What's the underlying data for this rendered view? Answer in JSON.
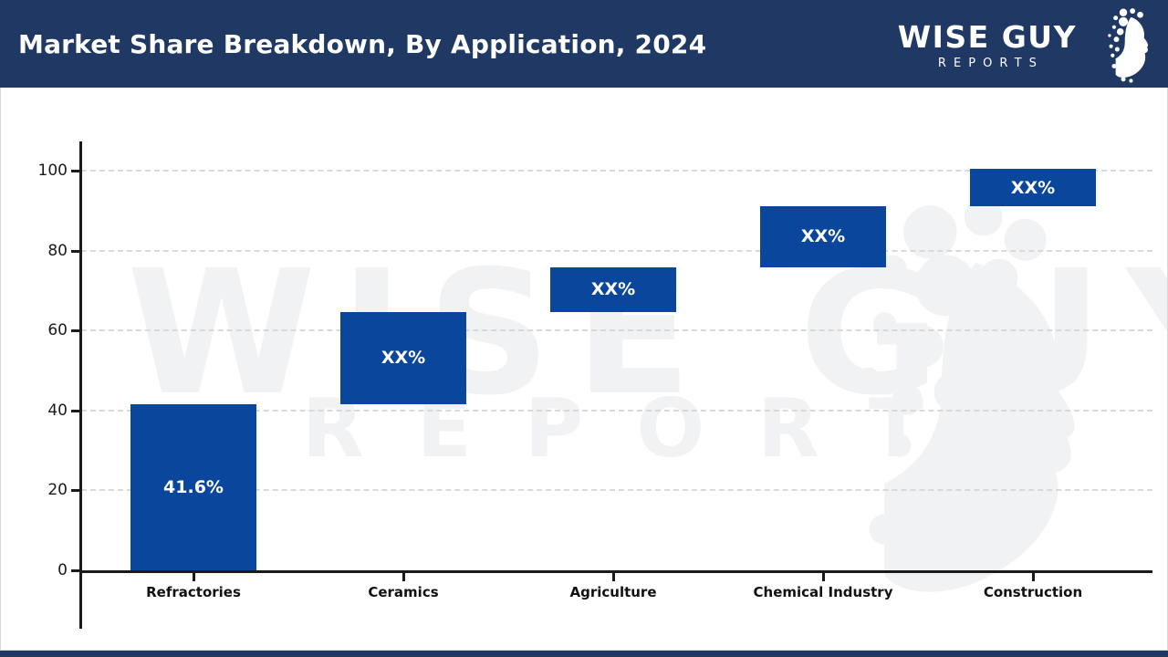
{
  "header": {
    "title": "Market Share Breakdown, By Application, 2024",
    "logo": {
      "line1": "WISE GUY",
      "line2": "REPORTS"
    }
  },
  "watermark": {
    "line1": "WISE GUY",
    "line2": "REPORTS"
  },
  "colors": {
    "header_bg": "#1f3864",
    "footer_bg": "#1f3864",
    "bar": "#09469c",
    "grid": "#d9d9d9",
    "axis": "#1a1a1a",
    "bar_label_text": "#ffffff",
    "watermark": "#f1f2f4"
  },
  "chart_data": {
    "type": "bar",
    "subtype": "waterfall",
    "title": "Market Share Breakdown, By Application, 2024",
    "xlabel": "",
    "ylabel": "",
    "categories": [
      "Refractories",
      "Ceramics",
      "Agriculture",
      "Chemical Industry",
      "Construction"
    ],
    "segments": [
      {
        "category": "Refractories",
        "start": 0,
        "end": 41.6,
        "height": 41.6,
        "label": "41.6%"
      },
      {
        "category": "Ceramics",
        "start": 41.6,
        "end": 64.6,
        "height": 23.0,
        "label": "XX%"
      },
      {
        "category": "Agriculture",
        "start": 64.6,
        "end": 75.9,
        "height": 11.3,
        "label": "XX%"
      },
      {
        "category": "Chemical Industry",
        "start": 75.9,
        "end": 91.0,
        "height": 15.1,
        "label": "XX%"
      },
      {
        "category": "Construction",
        "start": 91.0,
        "end": 100.4,
        "height": 9.4,
        "label": "XX%"
      }
    ],
    "y_ticks": [
      0,
      20,
      40,
      60,
      80,
      100
    ],
    "ylim": [
      0,
      107
    ],
    "grid": "horizontal dashed",
    "legend": "none"
  }
}
